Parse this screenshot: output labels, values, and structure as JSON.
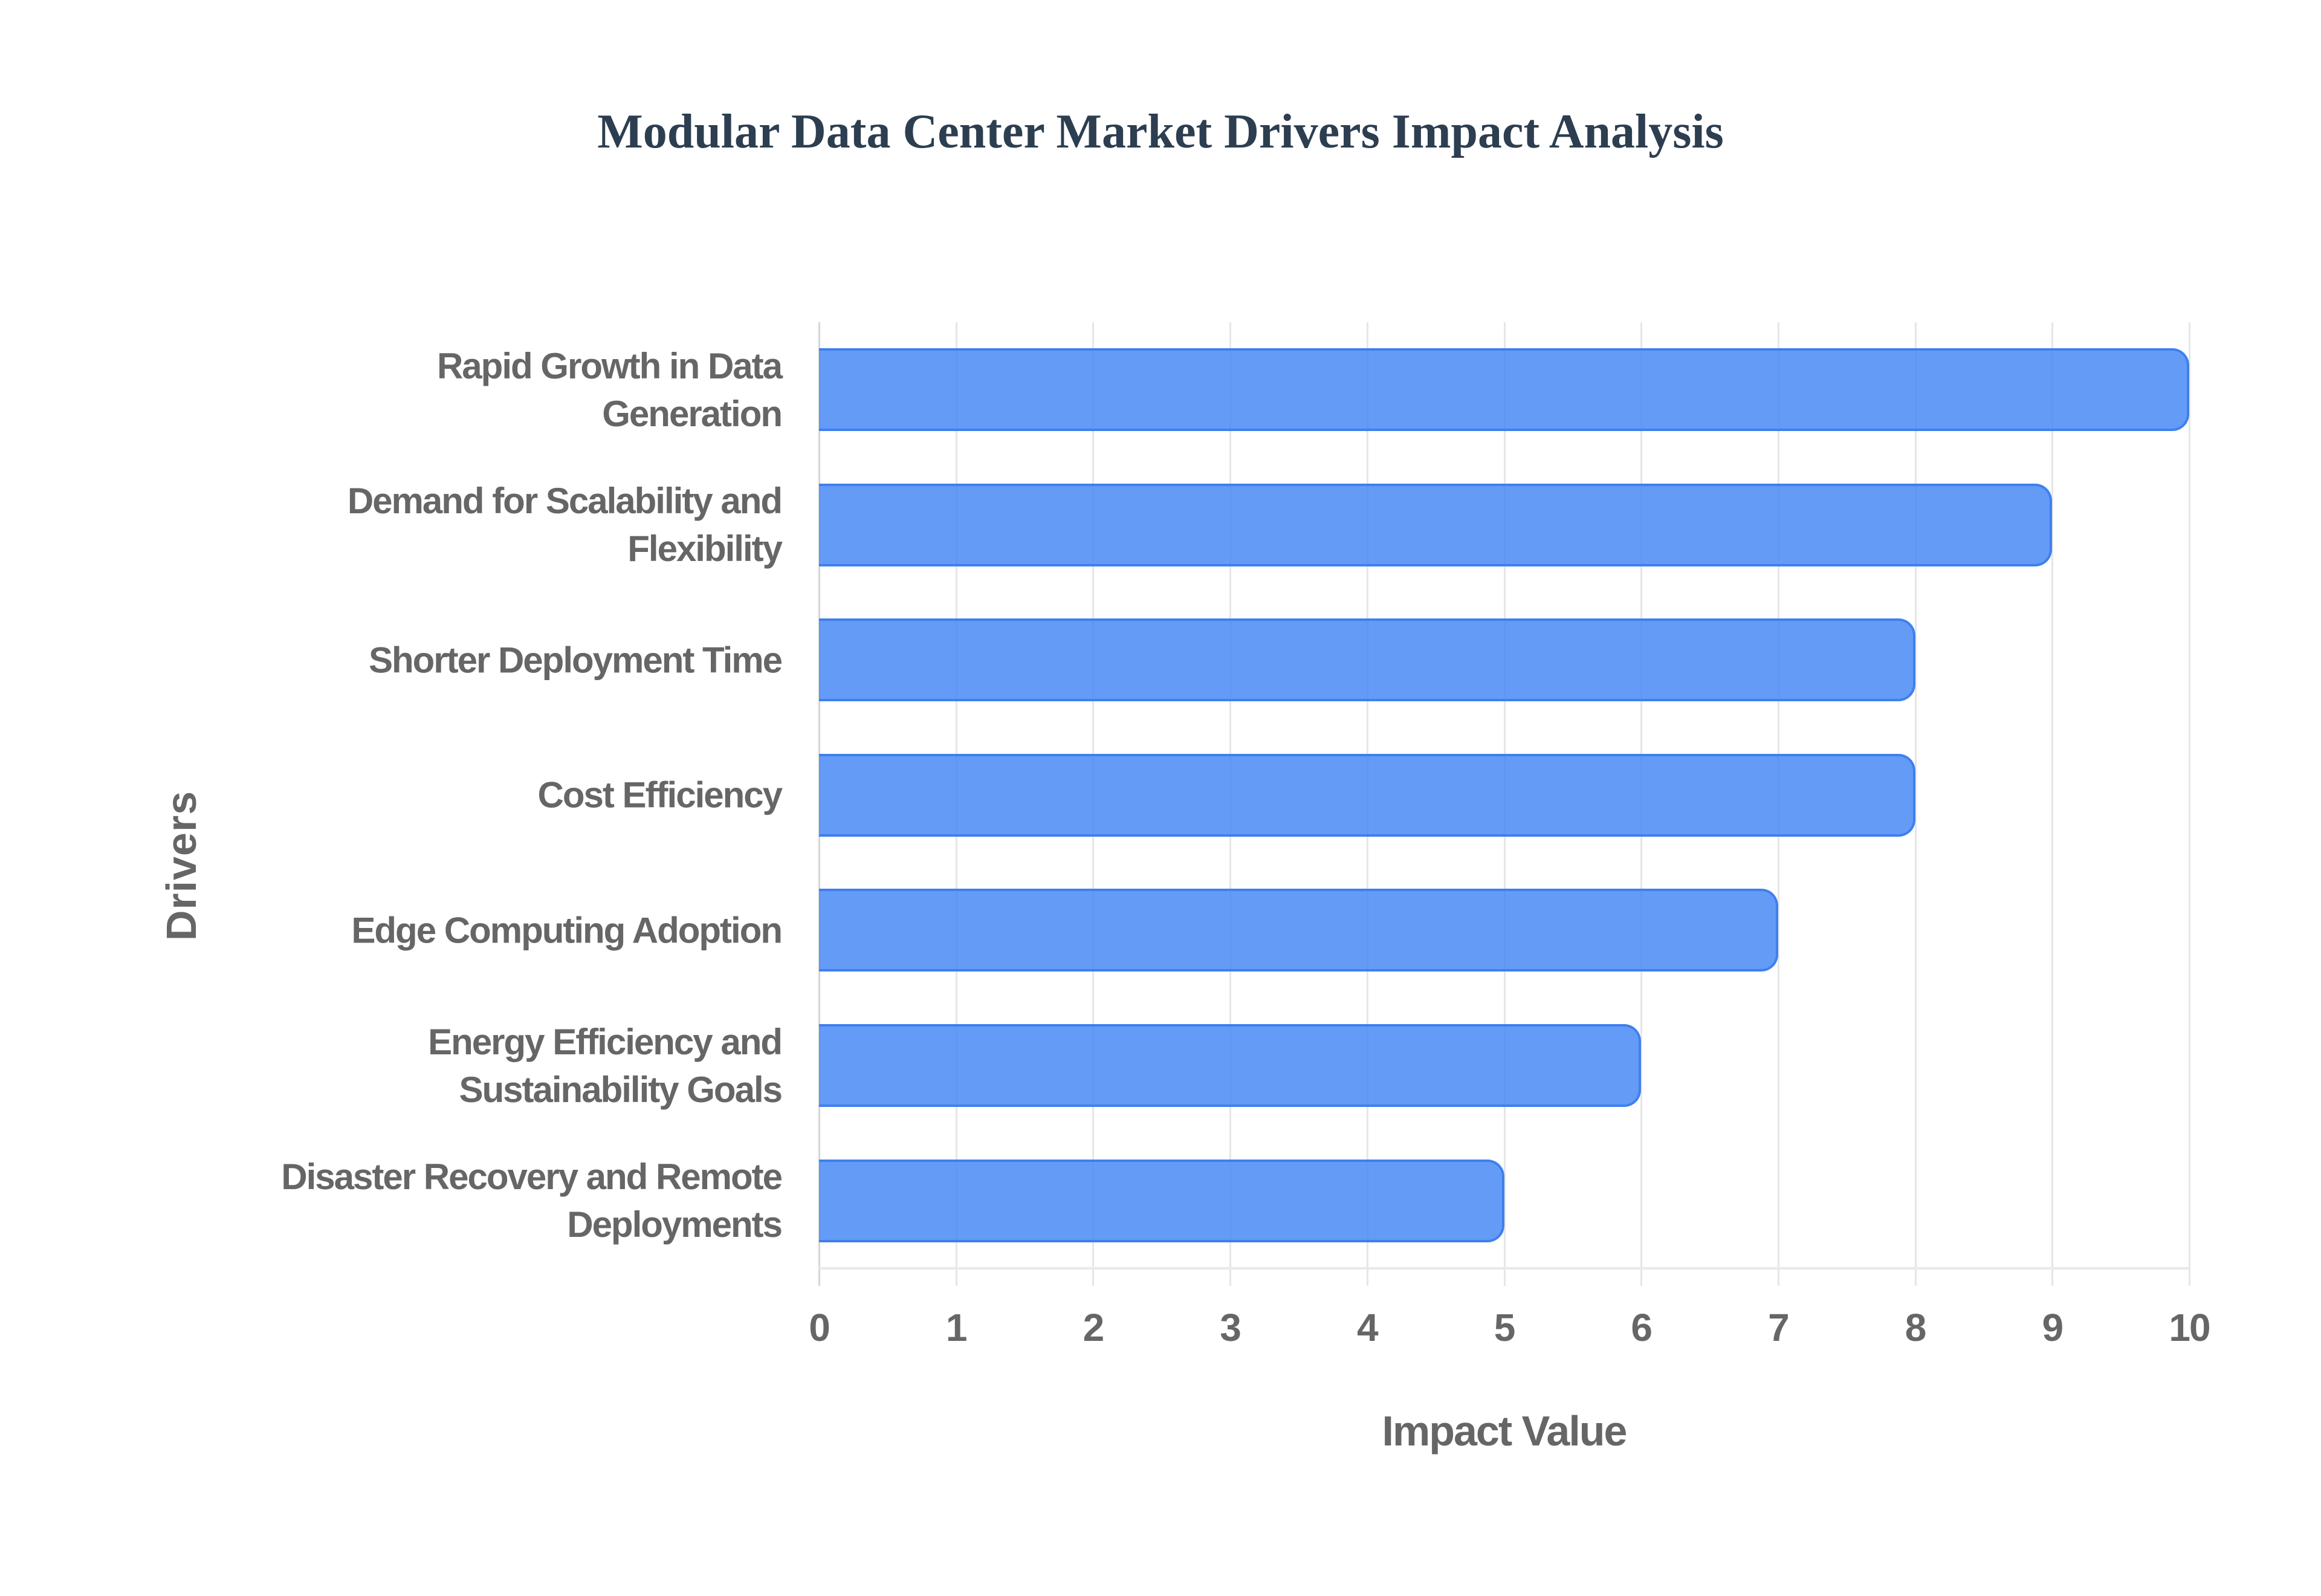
{
  "title": "Modular Data Center Market Drivers Impact Analysis",
  "axes": {
    "x_title": "Impact Value",
    "y_title": "Drivers",
    "x_ticks": [
      "0",
      "1",
      "2",
      "3",
      "4",
      "5",
      "6",
      "7",
      "8",
      "9",
      "10"
    ]
  },
  "colors": {
    "bar_fill": "#6199F5",
    "bar_border": "#4285F4",
    "title": "#2C3E50",
    "axis_text": "#666666",
    "grid": "#E6E6E6"
  },
  "bars": [
    {
      "label_lines": [
        "Rapid Growth in Data",
        "Generation"
      ],
      "value": 10
    },
    {
      "label_lines": [
        "Demand for Scalability and",
        "Flexibility"
      ],
      "value": 9
    },
    {
      "label_lines": [
        "Shorter Deployment Time"
      ],
      "value": 8
    },
    {
      "label_lines": [
        "Cost Efficiency"
      ],
      "value": 8
    },
    {
      "label_lines": [
        "Edge Computing Adoption"
      ],
      "value": 7
    },
    {
      "label_lines": [
        "Energy Efficiency and",
        "Sustainability Goals"
      ],
      "value": 6
    },
    {
      "label_lines": [
        "Disaster Recovery and Remote",
        "Deployments"
      ],
      "value": 5
    }
  ],
  "chart_data": {
    "type": "bar",
    "orientation": "horizontal",
    "title": "Modular Data Center Market Drivers Impact Analysis",
    "categories": [
      "Rapid Growth in Data Generation",
      "Demand for Scalability and Flexibility",
      "Shorter Deployment Time",
      "Cost Efficiency",
      "Edge Computing Adoption",
      "Energy Efficiency and Sustainability Goals",
      "Disaster Recovery and Remote Deployments"
    ],
    "values": [
      10,
      9,
      8,
      8,
      7,
      6,
      5
    ],
    "xlabel": "Impact Value",
    "ylabel": "Drivers",
    "xlim": [
      0,
      10
    ],
    "x_ticks": [
      0,
      1,
      2,
      3,
      4,
      5,
      6,
      7,
      8,
      9,
      10
    ],
    "grid": {
      "vertical": true,
      "horizontal": false
    },
    "legend": null
  }
}
